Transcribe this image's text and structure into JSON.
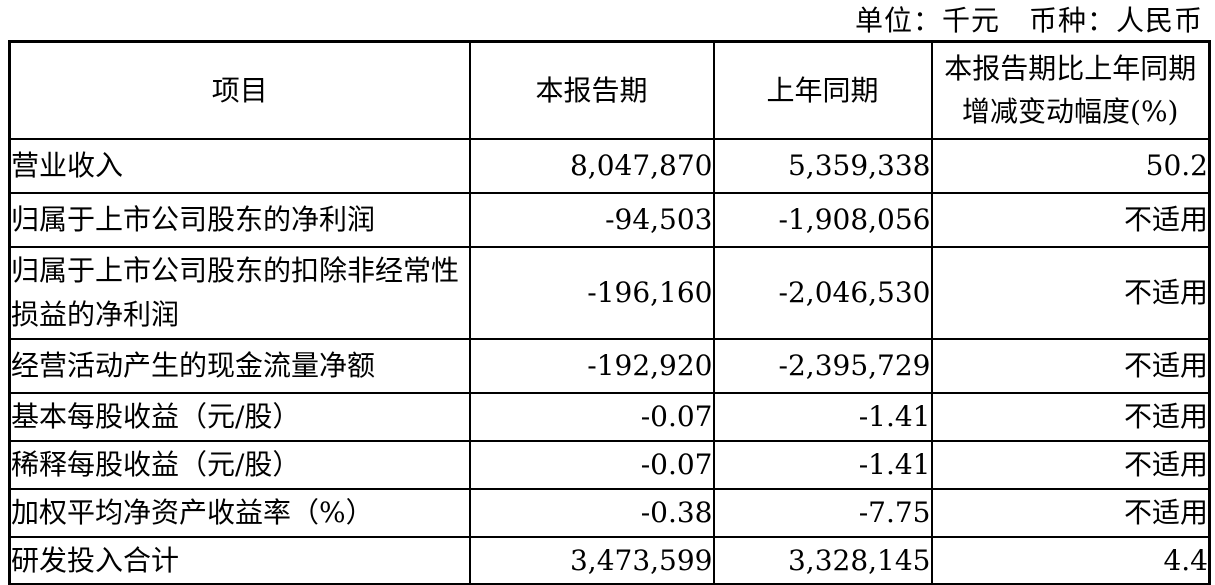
{
  "meta": {
    "unit_currency_note": "单位：千元　币种：人民币"
  },
  "table": {
    "headers": {
      "item": "项目",
      "current_period": "本报告期",
      "prior_period": "上年同期",
      "change": "本报告期比上年同期增减变动幅度(%)"
    },
    "rows": [
      {
        "item": "营业收入",
        "current": "8,047,870",
        "prior": "5,359,338",
        "change": "50.2"
      },
      {
        "item": "归属于上市公司股东的净利润",
        "current": "-94,503",
        "prior": "-1,908,056",
        "change": "不适用"
      },
      {
        "item": "归属于上市公司股东的扣除非经常性损益的净利润",
        "current": "-196,160",
        "prior": "-2,046,530",
        "change": "不适用"
      },
      {
        "item": "经营活动产生的现金流量净额",
        "current": "-192,920",
        "prior": "-2,395,729",
        "change": "不适用"
      },
      {
        "item": "基本每股收益（元/股）",
        "current": "-0.07",
        "prior": "-1.41",
        "change": "不适用"
      },
      {
        "item": "稀释每股收益（元/股）",
        "current": "-0.07",
        "prior": "-1.41",
        "change": "不适用"
      },
      {
        "item": "加权平均净资产收益率（%）",
        "current": "-0.38",
        "prior": "-7.75",
        "change": "不适用"
      },
      {
        "item": "研发投入合计",
        "current": "3,473,599",
        "prior": "3,328,145",
        "change": "4.4"
      }
    ]
  }
}
